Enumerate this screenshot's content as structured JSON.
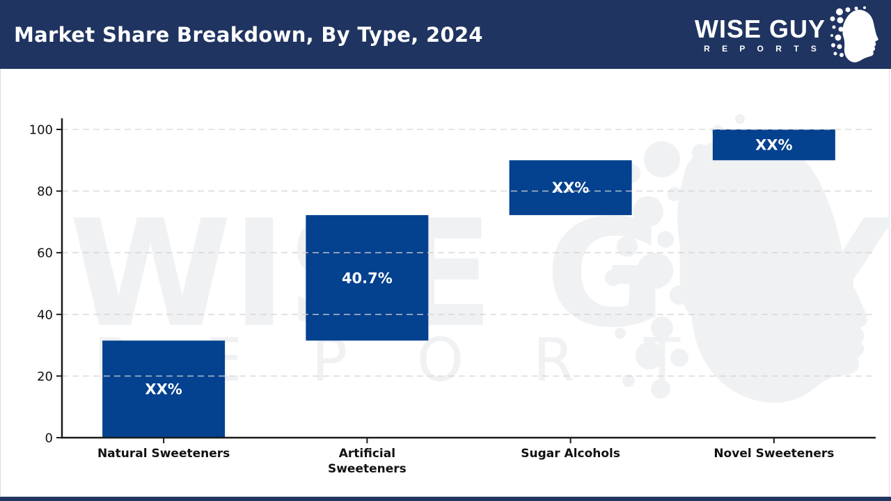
{
  "header": {
    "title": "Market Share Breakdown, By Type, 2024"
  },
  "logo": {
    "line1": "WISE GUY",
    "line2": "R E P O R T S"
  },
  "watermark": {
    "line1": "WISE GUY",
    "line2": "R E P O R T S"
  },
  "colors": {
    "header_bg": "#1F3460",
    "footer_bg": "#1F3460",
    "bar_fill": "#04418F",
    "bar_label_text": "#ffffff",
    "axis": "#1a1a1a",
    "tick_label": "#111111",
    "grid": "#d4d4d4",
    "watermark": "#f0f1f3"
  },
  "chart_data": {
    "type": "bar",
    "subtype": "waterfall",
    "title": "Market Share Breakdown, By Type, 2024",
    "xlabel": "",
    "ylabel": "",
    "categories": [
      "Natural Sweeteners",
      "Artificial\nSweeteners",
      "Sugar Alcohols",
      "Novel Sweeteners"
    ],
    "segments": [
      {
        "category": "Natural Sweeteners",
        "start": 0,
        "end": 31.5,
        "value": 31.5,
        "value_label": "XX%"
      },
      {
        "category": "Artificial Sweeteners",
        "start": 31.5,
        "end": 72.2,
        "value": 40.7,
        "value_label": "40.7%"
      },
      {
        "category": "Sugar Alcohols",
        "start": 72.2,
        "end": 90.0,
        "value": 17.8,
        "value_label": "XX%"
      },
      {
        "category": "Novel Sweeteners",
        "start": 90.0,
        "end": 100.0,
        "value": 10.0,
        "value_label": "XX%"
      }
    ],
    "values": [
      31.5,
      40.7,
      17.8,
      10.0
    ],
    "bar_labels": [
      "XX%",
      "40.7%",
      "XX%",
      "XX%"
    ],
    "y_ticks": [
      0,
      20,
      40,
      60,
      80,
      100
    ],
    "ylim": [
      0,
      103.5
    ],
    "grid": "horizontal-dashed",
    "legend_position": "none"
  }
}
